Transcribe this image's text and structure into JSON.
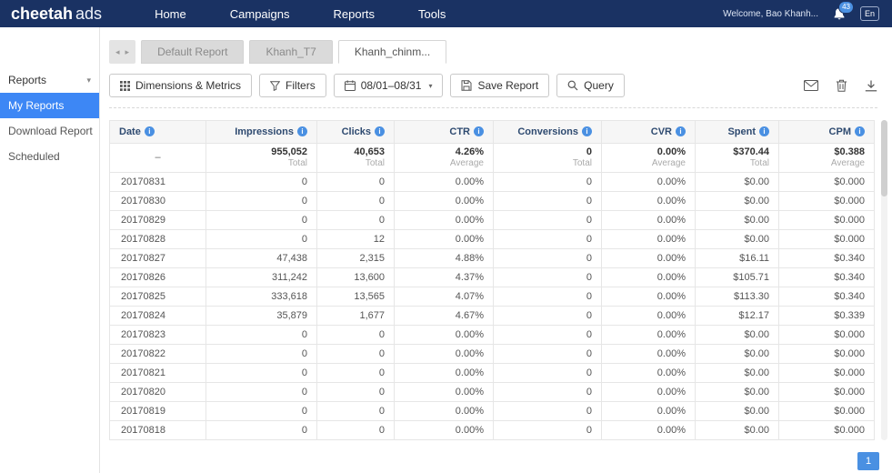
{
  "topnav": {
    "brand_bold": "cheetah",
    "brand_light": "ads",
    "items": [
      {
        "label": "Home"
      },
      {
        "label": "Campaigns"
      },
      {
        "label": "Reports"
      },
      {
        "label": "Tools"
      }
    ],
    "welcome": "Welcome,",
    "username": "Bao Khanh...",
    "notification_count": "43",
    "language": "En"
  },
  "sidebar": {
    "section_label": "Reports",
    "items": [
      {
        "label": "My Reports",
        "active": true
      },
      {
        "label": "Download Report",
        "active": false
      },
      {
        "label": "Scheduled",
        "active": false
      }
    ]
  },
  "tabs": [
    {
      "label": "Default Report",
      "active": false
    },
    {
      "label": "Khanh_T7",
      "active": false
    },
    {
      "label": "Khanh_chinm...",
      "active": true
    }
  ],
  "toolbar": {
    "dimensions_metrics_label": "Dimensions & Metrics",
    "filters_label": "Filters",
    "date_range_label": "08/01–08/31",
    "save_report_label": "Save Report",
    "query_label": "Query"
  },
  "icons": {
    "bell-icon": "notification bell",
    "grid-icon": "3x3 grid",
    "funnel-icon": "filter funnel",
    "calendar-icon": "calendar",
    "save-icon": "floppy disk",
    "search-icon": "magnifier",
    "mail-icon": "envelope",
    "trash-icon": "trash can",
    "download-icon": "download arrow",
    "info-glyph": "i",
    "caret-down": "▾",
    "tab-arrow-left": "◂",
    "tab-arrow-right": "▸"
  },
  "table": {
    "columns": [
      "Date",
      "Impressions",
      "Clicks",
      "CTR",
      "Conversions",
      "CVR",
      "Spent",
      "CPM"
    ],
    "total_row": {
      "date": "–",
      "values": [
        {
          "v": "955,052",
          "sub": "Total"
        },
        {
          "v": "40,653",
          "sub": "Total"
        },
        {
          "v": "4.26%",
          "sub": "Average"
        },
        {
          "v": "0",
          "sub": "Total"
        },
        {
          "v": "0.00%",
          "sub": "Average"
        },
        {
          "v": "$370.44",
          "sub": "Total"
        },
        {
          "v": "$0.388",
          "sub": "Average"
        }
      ]
    },
    "rows": [
      [
        "20170831",
        "0",
        "0",
        "0.00%",
        "0",
        "0.00%",
        "$0.00",
        "$0.000"
      ],
      [
        "20170830",
        "0",
        "0",
        "0.00%",
        "0",
        "0.00%",
        "$0.00",
        "$0.000"
      ],
      [
        "20170829",
        "0",
        "0",
        "0.00%",
        "0",
        "0.00%",
        "$0.00",
        "$0.000"
      ],
      [
        "20170828",
        "0",
        "12",
        "0.00%",
        "0",
        "0.00%",
        "$0.00",
        "$0.000"
      ],
      [
        "20170827",
        "47,438",
        "2,315",
        "4.88%",
        "0",
        "0.00%",
        "$16.11",
        "$0.340"
      ],
      [
        "20170826",
        "311,242",
        "13,600",
        "4.37%",
        "0",
        "0.00%",
        "$105.71",
        "$0.340"
      ],
      [
        "20170825",
        "333,618",
        "13,565",
        "4.07%",
        "0",
        "0.00%",
        "$113.30",
        "$0.340"
      ],
      [
        "20170824",
        "35,879",
        "1,677",
        "4.67%",
        "0",
        "0.00%",
        "$12.17",
        "$0.339"
      ],
      [
        "20170823",
        "0",
        "0",
        "0.00%",
        "0",
        "0.00%",
        "$0.00",
        "$0.000"
      ],
      [
        "20170822",
        "0",
        "0",
        "0.00%",
        "0",
        "0.00%",
        "$0.00",
        "$0.000"
      ],
      [
        "20170821",
        "0",
        "0",
        "0.00%",
        "0",
        "0.00%",
        "$0.00",
        "$0.000"
      ],
      [
        "20170820",
        "0",
        "0",
        "0.00%",
        "0",
        "0.00%",
        "$0.00",
        "$0.000"
      ],
      [
        "20170819",
        "0",
        "0",
        "0.00%",
        "0",
        "0.00%",
        "$0.00",
        "$0.000"
      ],
      [
        "20170818",
        "0",
        "0",
        "0.00%",
        "0",
        "0.00%",
        "$0.00",
        "$0.000"
      ]
    ]
  },
  "pagination": {
    "current_page": "1"
  },
  "colors": {
    "topbar": "#1a3263",
    "accent_blue": "#4a90e2",
    "sidebar_active": "#3d87f5"
  }
}
